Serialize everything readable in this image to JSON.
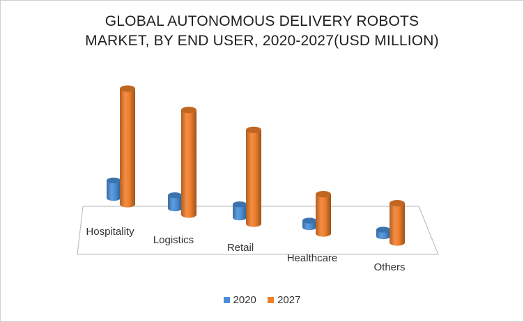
{
  "chart_data": {
    "type": "bar",
    "title_lines": [
      "GLOBAL AUTONOMOUS DELIVERY ROBOTS",
      "MARKET, BY END USER, 2020-2027(USD MILLION)"
    ],
    "categories": [
      "Hospitality",
      "Logistics",
      "Retail",
      "Healthcare",
      "Others"
    ],
    "series": [
      {
        "name": "2020",
        "color": "#4a90d9",
        "values": [
          8,
          6,
          6,
          3,
          3
        ]
      },
      {
        "name": "2027",
        "color": "#f07f2c",
        "values": [
          53,
          48,
          43,
          18,
          18
        ]
      }
    ],
    "ylim": [
      0,
      60
    ],
    "grid": false,
    "legend_position": "bottom",
    "style": "3d-cylinder"
  }
}
